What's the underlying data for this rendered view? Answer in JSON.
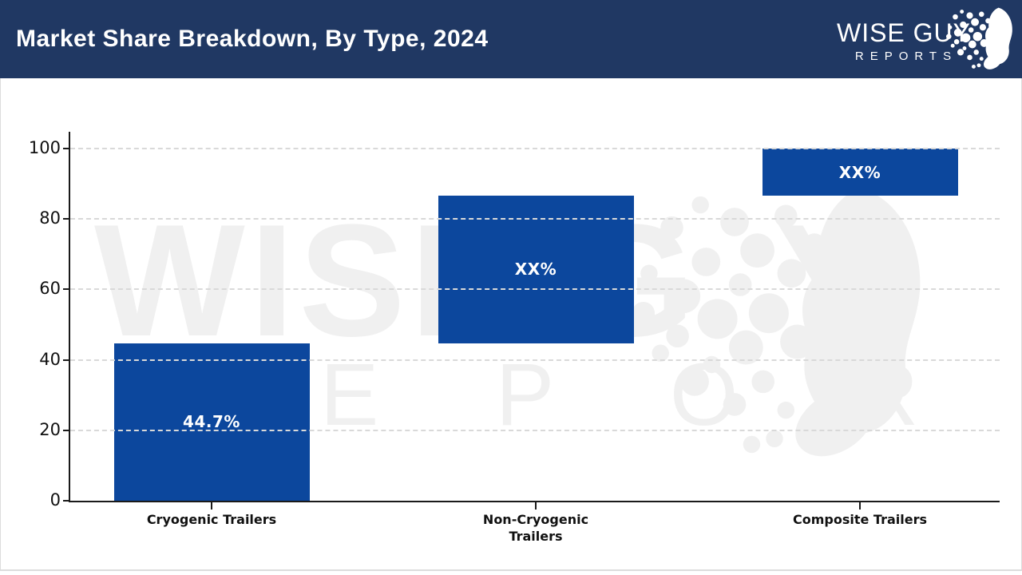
{
  "header": {
    "title": "Market Share Breakdown, By Type, 2024",
    "logo": {
      "line1": "WISE GUY",
      "line2": "REPORTS"
    }
  },
  "watermark": {
    "row1": "WISE G",
    "row1_y": "Y",
    "row2": "R E P O R T S"
  },
  "chart_data": {
    "type": "bar",
    "subtype": "waterfall",
    "title": "Market Share Breakdown, By Type, 2024",
    "categories": [
      "Cryogenic Trailers",
      "Non-Cryogenic\nTrailers",
      "Composite Trailers"
    ],
    "bars": [
      {
        "category": "Cryogenic Trailers",
        "start": 0,
        "end": 44.7,
        "label": "44.7%"
      },
      {
        "category": "Non-Cryogenic Trailers",
        "start": 44.7,
        "end": 86.6,
        "label": "XX%"
      },
      {
        "category": "Composite Trailers",
        "start": 86.6,
        "end": 100,
        "label": "XX%"
      }
    ],
    "ylim": [
      0,
      100
    ],
    "yticks": [
      0,
      20,
      40,
      60,
      80,
      100
    ],
    "grid": "horizontal-dashed",
    "legend": "none",
    "bar_color": "#0c479d"
  },
  "colors": {
    "header_bg": "#203863",
    "bar": "#0c479d",
    "gridline": "#d9d9d9",
    "axis": "#1a1a1a",
    "watermark": "#f0f0f0",
    "bar_label_text": "#ffffff",
    "tick_text": "#111111"
  }
}
